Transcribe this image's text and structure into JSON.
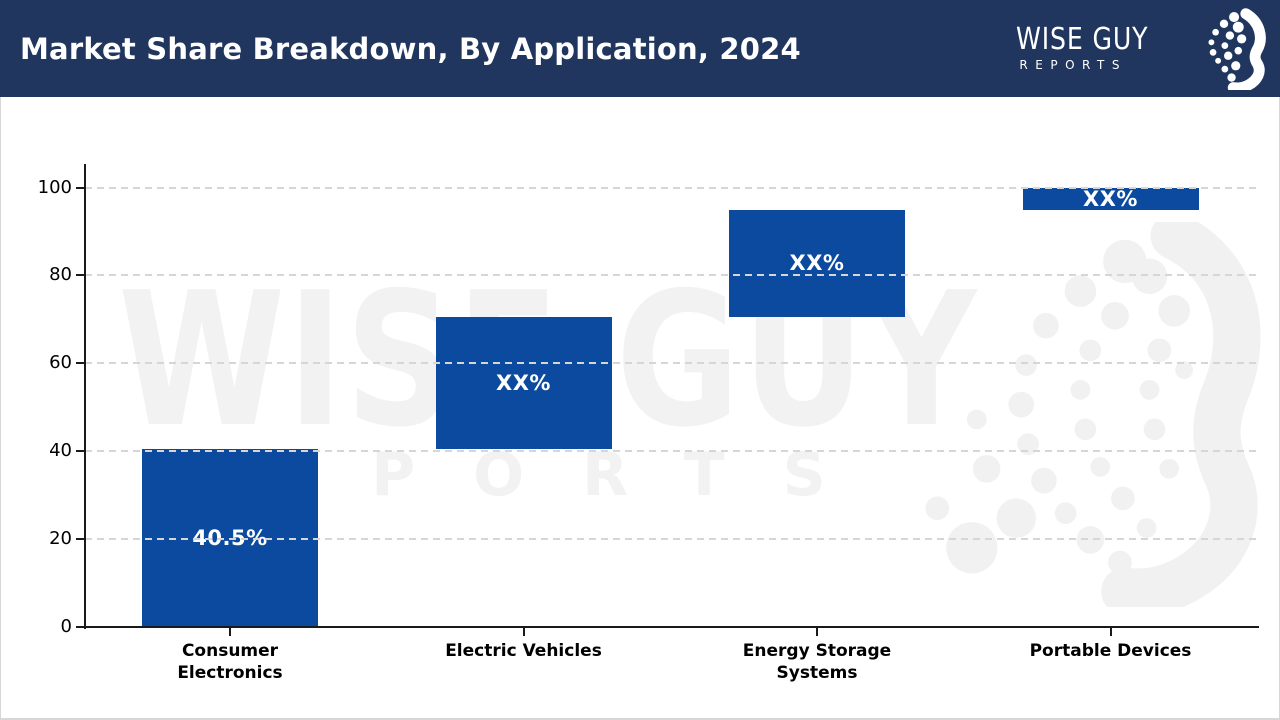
{
  "header": {
    "title": "Market Share Breakdown, By Application, 2024",
    "bg_color": "#20365f",
    "logo": {
      "wordmark": "WISE GUY",
      "subtext": "REPORTS"
    }
  },
  "watermark": {
    "line1": "WISE GUY",
    "line2": "REPORTS"
  },
  "chart_data": {
    "type": "bar",
    "subtype": "stacked-waterfall",
    "title": "Market Share Breakdown, By Application, 2024",
    "categories": [
      "Consumer Electronics",
      "Electric Vehicles",
      "Energy Storage Systems",
      "Portable Devices"
    ],
    "category_lines": [
      [
        "Consumer",
        "Electronics"
      ],
      [
        "Electric Vehicles"
      ],
      [
        "Energy Storage",
        "Systems"
      ],
      [
        "Portable Devices"
      ]
    ],
    "bars": [
      {
        "category": "Consumer Electronics",
        "base": 0,
        "top": 40.5,
        "value": 40.5,
        "label": "40.5%"
      },
      {
        "category": "Electric Vehicles",
        "base": 40.5,
        "top": 70.5,
        "value": 30.0,
        "label": "XX%"
      },
      {
        "category": "Energy Storage Systems",
        "base": 70.5,
        "top": 95.0,
        "value": 24.5,
        "label": "XX%"
      },
      {
        "category": "Portable Devices",
        "base": 95.0,
        "top": 100.0,
        "value": 5.0,
        "label": "XX%"
      }
    ],
    "ylim": [
      0,
      100
    ],
    "yticks": [
      0,
      20,
      40,
      60,
      80,
      100
    ],
    "xlabel": "",
    "ylabel": "",
    "grid": "horizontal-dashed",
    "legend": "none",
    "bar_color": "#0b4a9e",
    "bar_label_color": "#ffffff",
    "gridline_color": "#d6d6d6"
  }
}
